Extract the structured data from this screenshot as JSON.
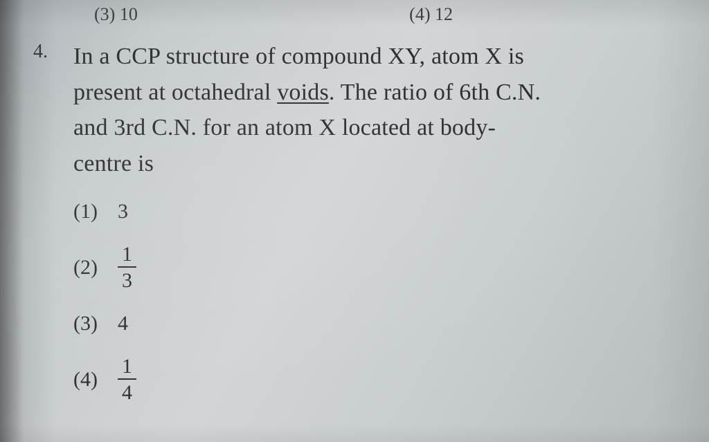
{
  "previous": {
    "left_option": "(3) 10",
    "right_option": "(4) 12"
  },
  "question": {
    "number": "4.",
    "line1_part1": "In a CCP structure of compound XY, atom X is",
    "line2_part1": "present at octahedral ",
    "line2_underlined": "voids",
    "line2_part2": ". The ratio of 6th C.N.",
    "line3": "and 3rd C.N. for an atom X located at body-",
    "line4": "centre is"
  },
  "options": {
    "o1": {
      "label": "(1)",
      "value": "3"
    },
    "o2": {
      "label": "(2)",
      "num": "1",
      "den": "3"
    },
    "o3": {
      "label": "(3)",
      "value": "4"
    },
    "o4": {
      "label": "(4)",
      "num": "1",
      "den": "4"
    }
  }
}
